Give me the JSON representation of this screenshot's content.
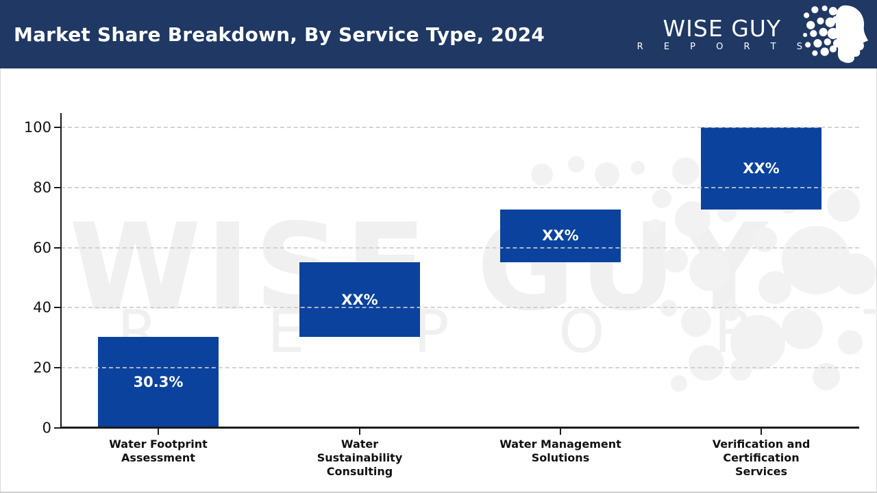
{
  "header": {
    "title": "Market Share Breakdown, By Service Type, 2024",
    "logo": {
      "name": "WISE GUY",
      "sub": "R E P O R T S"
    }
  },
  "watermark": {
    "big": "WISE GUY",
    "sub": "R E P O R T S"
  },
  "chart_data": {
    "type": "bar",
    "subtype": "waterfall",
    "title": "Market Share Breakdown, By Service Type, 2024",
    "categories": [
      [
        "Water Footprint",
        "Assessment"
      ],
      [
        "Water",
        "Sustainability",
        "Consulting"
      ],
      [
        "Water Management",
        "Solutions"
      ],
      [
        "Verification and",
        "Certification",
        "Services"
      ]
    ],
    "segments": [
      {
        "start": 0,
        "end": 30.3
      },
      {
        "start": 30.3,
        "end": 55.1
      },
      {
        "start": 55.1,
        "end": 72.7
      },
      {
        "start": 72.7,
        "end": 100
      }
    ],
    "bar_labels": [
      "30.3%",
      "XX%",
      "XX%",
      "XX%"
    ],
    "yticks": [
      0,
      20,
      40,
      60,
      80,
      100
    ],
    "ylim": [
      0,
      100
    ],
    "grid": "horizontal-dashed",
    "legend": "none",
    "bar_color": "#0a429e",
    "bar_label_color": "#ffffff",
    "header_color": "#1f3864"
  }
}
